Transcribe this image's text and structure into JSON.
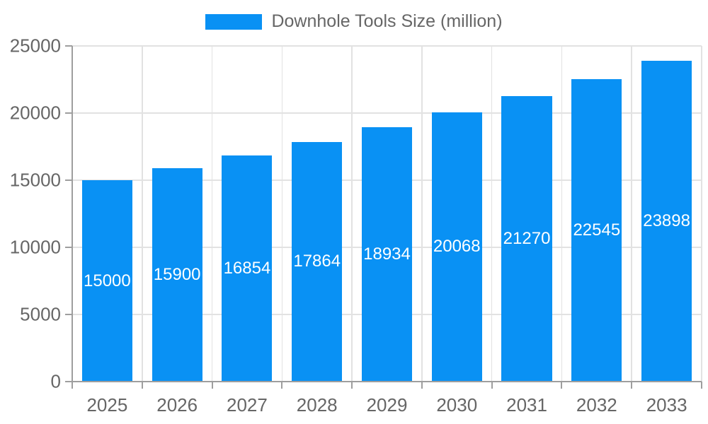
{
  "chart_data": {
    "type": "bar",
    "title": "",
    "legend": "Downhole Tools Size (million)",
    "legend_position": "top",
    "categories": [
      "2025",
      "2026",
      "2027",
      "2028",
      "2029",
      "2030",
      "2031",
      "2032",
      "2033"
    ],
    "series": [
      {
        "name": "Downhole Tools Size (million)",
        "values": [
          15000,
          15900,
          16854,
          17864,
          18934,
          20068,
          21270,
          22545,
          23898
        ]
      }
    ],
    "value_labels": [
      "15000",
      "15900",
      "16854",
      "17864",
      "18934",
      "20068",
      "21270",
      "22545",
      "23898"
    ],
    "xlabel": "",
    "ylabel": "",
    "ylim": [
      0,
      25000
    ],
    "ytick_step": 5000,
    "yticks": [
      "0",
      "5000",
      "10000",
      "15000",
      "20000",
      "25000"
    ],
    "grid": true,
    "colors": {
      "bar": "#0991f4",
      "bar_value_text": "#ffffff",
      "axis_text": "#666666",
      "legend_text": "#666666",
      "grid_line": "#e2e2e2",
      "axis_line": "#9e9e9e"
    }
  }
}
